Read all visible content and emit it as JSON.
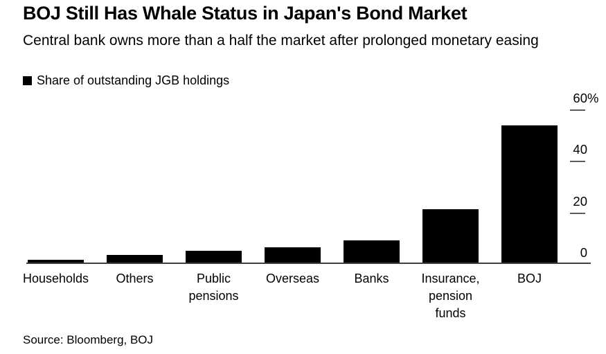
{
  "header": {
    "title": "BOJ Still Has Whale Status in Japan's Bond Market",
    "subtitle": "Central bank owns more than a half the market after prolonged monetary easing"
  },
  "legend": {
    "label": "Share of outstanding JGB holdings",
    "swatch_color": "#000000"
  },
  "source": "Source: Bloomberg, BOJ",
  "colors": {
    "bar": "#000000",
    "axis_line": "#3f3f3f",
    "tick_mark": "#5a5a5a",
    "text": "#000000",
    "background": "#ffffff"
  },
  "chart_data": {
    "type": "bar",
    "title": "BOJ Still Has Whale Status in Japan's Bond Market",
    "subtitle": "Central bank owns more than a half the market after prolonged monetary easing",
    "legend": [
      "Share of outstanding JGB holdings"
    ],
    "legend_position": "top-left",
    "categories": [
      "Households",
      "Others",
      "Public pensions",
      "Overseas",
      "Banks",
      "Insurance, pension funds",
      "BOJ"
    ],
    "category_lines": [
      [
        "Households"
      ],
      [
        "Others"
      ],
      [
        "Public",
        "pensions"
      ],
      [
        "Overseas"
      ],
      [
        "Banks"
      ],
      [
        "Insurance,",
        "pension",
        "funds"
      ],
      [
        "BOJ"
      ]
    ],
    "values": [
      1.1,
      3.0,
      4.5,
      6.0,
      8.6,
      20.8,
      53.2
    ],
    "xlabel": "",
    "ylabel": "Share of outstanding JGB holdings (%)",
    "ylim": [
      0,
      60
    ],
    "yticks": [
      {
        "value": 0,
        "label": "0"
      },
      {
        "value": 20,
        "label": "20"
      },
      {
        "value": 40,
        "label": "40"
      },
      {
        "value": 60,
        "label": "60%"
      }
    ],
    "y_axis_side": "right",
    "grid": false,
    "bar_color": "#000000",
    "source": "Source: Bloomberg, BOJ"
  }
}
